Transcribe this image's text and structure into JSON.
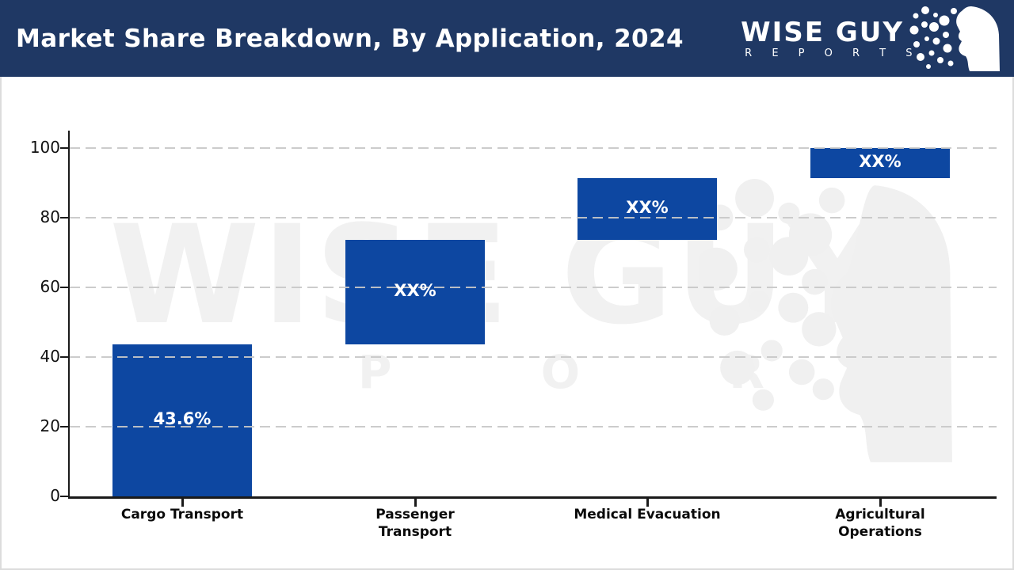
{
  "header": {
    "title": "Market Share Breakdown, By Application, 2024",
    "bg_color": "#1f3864",
    "logo": {
      "line1": "WISE GUY",
      "line2": "R E P O R T S",
      "head_icon": "dotted-head-profile-icon"
    }
  },
  "watermark": {
    "line1": "WISE GUY",
    "line2": "P O R T S",
    "head_icon": "dotted-head-profile-ghost",
    "color": "#f1f1f1"
  },
  "chart_data": {
    "type": "bar",
    "subtype": "waterfall",
    "title": "Market Share Breakdown, By Application, 2024",
    "xlabel": "",
    "ylabel": "",
    "ylim": [
      0,
      100
    ],
    "y_ticks": [
      0,
      20,
      40,
      60,
      80,
      100
    ],
    "grid": true,
    "grid_style": "dashed",
    "legend": "none",
    "bar_color": "#0d47a1",
    "value_label_color": "#ffffff",
    "categories": [
      "Cargo Transport",
      "Passenger Transport",
      "Medical Evacuation",
      "Agricultural Operations"
    ],
    "category_label_lines": [
      [
        "Cargo Transport"
      ],
      [
        "Passenger",
        "Transport"
      ],
      [
        "Medical Evacuation"
      ],
      [
        "Agricultural",
        "Operations"
      ]
    ],
    "segments": [
      {
        "category": "Cargo Transport",
        "start": 0,
        "end": 43.6,
        "label": "43.6%"
      },
      {
        "category": "Passenger Transport",
        "start": 43.6,
        "end": 73.6,
        "label": "XX%"
      },
      {
        "category": "Medical Evacuation",
        "start": 73.6,
        "end": 91.4,
        "label": "XX%"
      },
      {
        "category": "Agricultural Operations",
        "start": 91.4,
        "end": 100,
        "label": "XX%"
      }
    ]
  }
}
